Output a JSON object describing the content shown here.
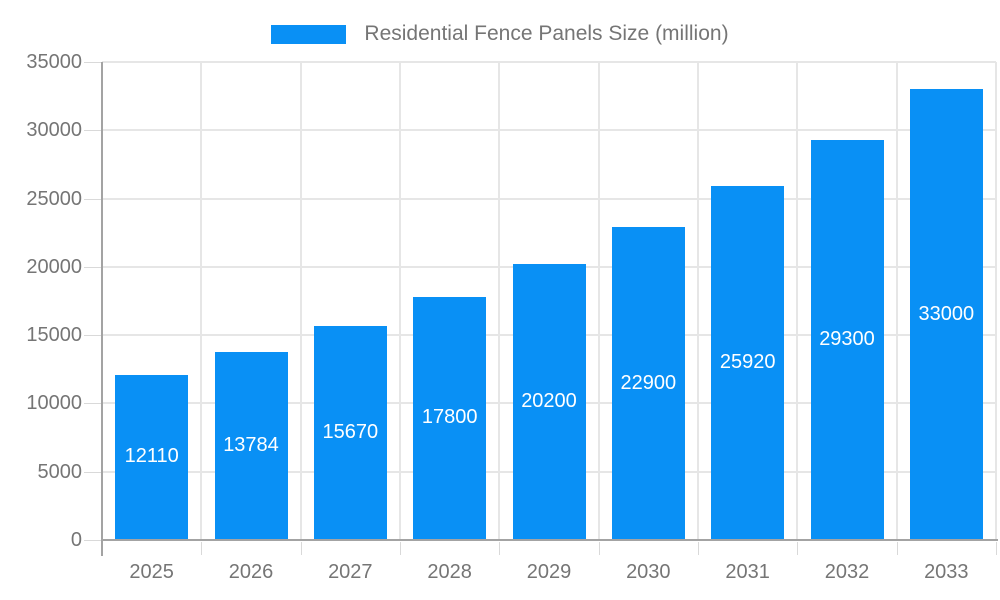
{
  "chart_data": {
    "type": "bar",
    "title": "Residential Fence Panels Size (million)",
    "categories": [
      "2025",
      "2026",
      "2027",
      "2028",
      "2029",
      "2030",
      "2031",
      "2032",
      "2033"
    ],
    "values": [
      12110,
      13784,
      15670,
      17800,
      20200,
      22900,
      25920,
      29300,
      33000
    ],
    "value_labels": [
      "12110",
      "13784",
      "15670",
      "17800",
      "20200",
      "22900",
      "25920",
      "29300",
      "33000"
    ],
    "xlabel": "",
    "ylabel": "",
    "ylim": [
      0,
      35000
    ],
    "ytick_step": 5000,
    "ytick_labels": [
      "0",
      "5000",
      "10000",
      "15000",
      "20000",
      "25000",
      "30000",
      "35000"
    ],
    "grid": true,
    "legend_position": "top-center",
    "value_labels_inside": true,
    "colors": {
      "bar": "#0990f5",
      "bar_value_text": "#ffffff",
      "axis_text": "#757575",
      "axis_line": "#a3a3a3",
      "gridline": "#e6e6e6",
      "tick": "#d9d9d9"
    }
  }
}
